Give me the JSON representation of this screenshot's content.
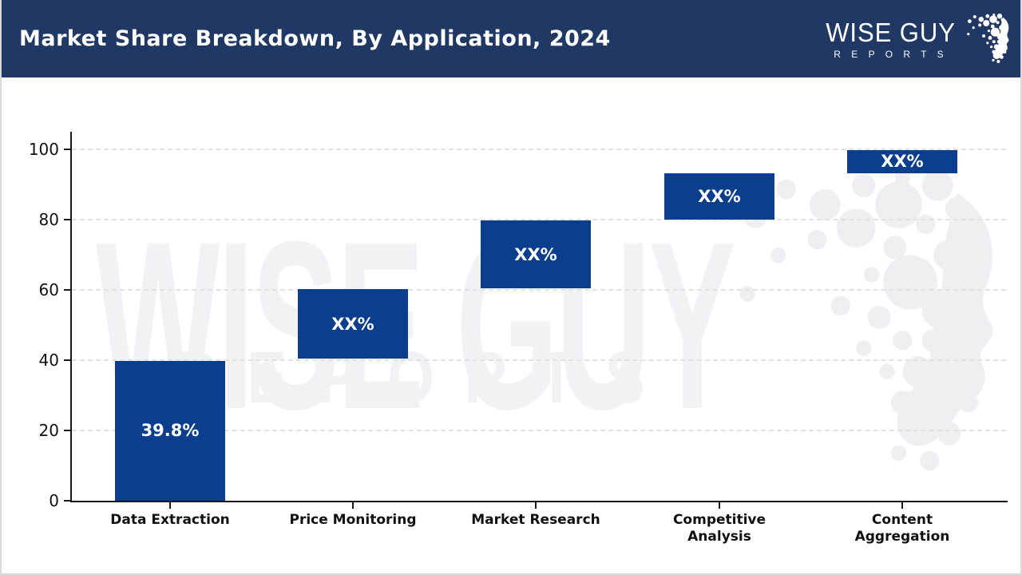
{
  "header": {
    "title": "Market Share Breakdown, By Application, 2024",
    "logo": {
      "name": "WISE GUY",
      "tagline": "R E P O R T S"
    }
  },
  "watermark": {
    "line1": "WISE GUY",
    "line2": "REPORTS"
  },
  "colors": {
    "header_bg": "#203864",
    "bar": "#0b3f8e",
    "bar_label": "#ffffff",
    "grid": "#e2e2e2",
    "axis": "#1a1a1a",
    "watermark": "#f2f2f4"
  },
  "chart_data": {
    "type": "bar",
    "subtype": "waterfall-floating-segments",
    "title": "Market Share Breakdown, By Application, 2024",
    "xlabel": "",
    "ylabel": "",
    "ylim": [
      0,
      100
    ],
    "yticks": [
      0,
      20,
      40,
      60,
      80,
      100
    ],
    "grid": "horizontal-dashed",
    "legend": "none",
    "categories": [
      "Data Extraction",
      "Price Monitoring",
      "Market Research",
      "Competitive Analysis",
      "Content Aggregation"
    ],
    "category_lines": [
      [
        "Data Extraction"
      ],
      [
        "Price Monitoring"
      ],
      [
        "Market Research"
      ],
      [
        "Competitive",
        "Analysis"
      ],
      [
        "Content",
        "Aggregation"
      ]
    ],
    "segments": [
      {
        "category": "Data Extraction",
        "start": 0,
        "end": 39.8,
        "label": "39.8%"
      },
      {
        "category": "Price Monitoring",
        "start": 40.4,
        "end": 60.2,
        "label": "XX%"
      },
      {
        "category": "Market Research",
        "start": 60.4,
        "end": 79.8,
        "label": "XX%"
      },
      {
        "category": "Competitive Analysis",
        "start": 80.0,
        "end": 93.2,
        "label": "XX%"
      },
      {
        "category": "Content Aggregation",
        "start": 93.2,
        "end": 99.8,
        "label": "XX%"
      }
    ]
  }
}
